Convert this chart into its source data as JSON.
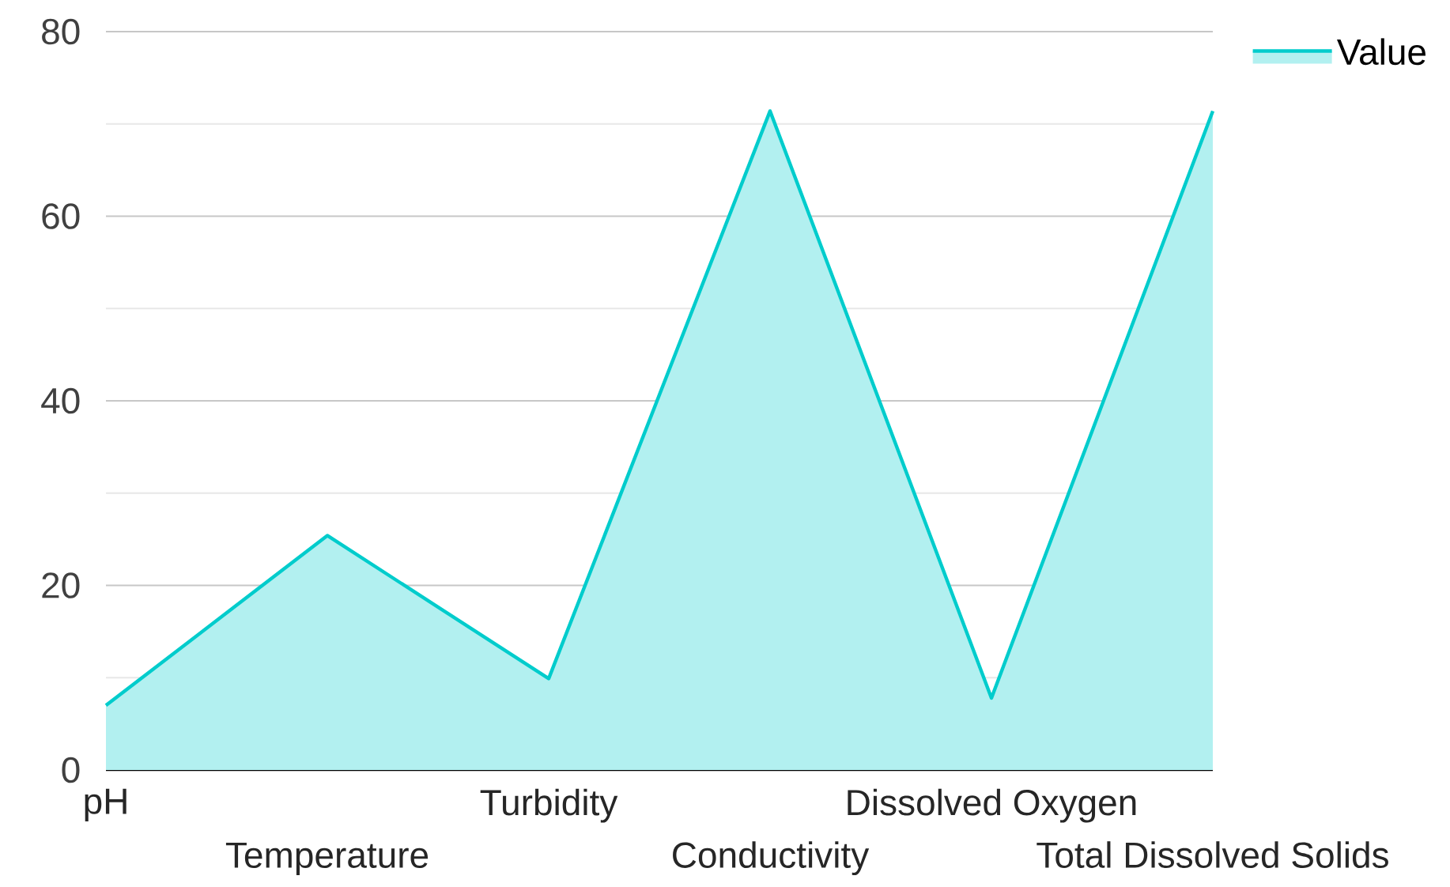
{
  "chart_data": {
    "type": "area",
    "categories": [
      "pH",
      "Temperature",
      "Turbidity",
      "Conductivity",
      "Dissolved Oxygen",
      "Total Dissolved Solids"
    ],
    "series": [
      {
        "name": "Value",
        "color": "#00cccc",
        "values": [
          7.0,
          25.4,
          9.9,
          71.4,
          7.8,
          71.4
        ]
      }
    ],
    "ylim": [
      0,
      80
    ],
    "yticks": [
      0,
      {
        "value": 10,
        "label": null
      },
      20,
      {
        "value": 30,
        "label": null
      },
      40,
      {
        "value": 50,
        "label": null
      },
      60,
      {
        "value": 70,
        "label": null
      },
      80
    ],
    "grid": "y",
    "legend": "top right"
  }
}
